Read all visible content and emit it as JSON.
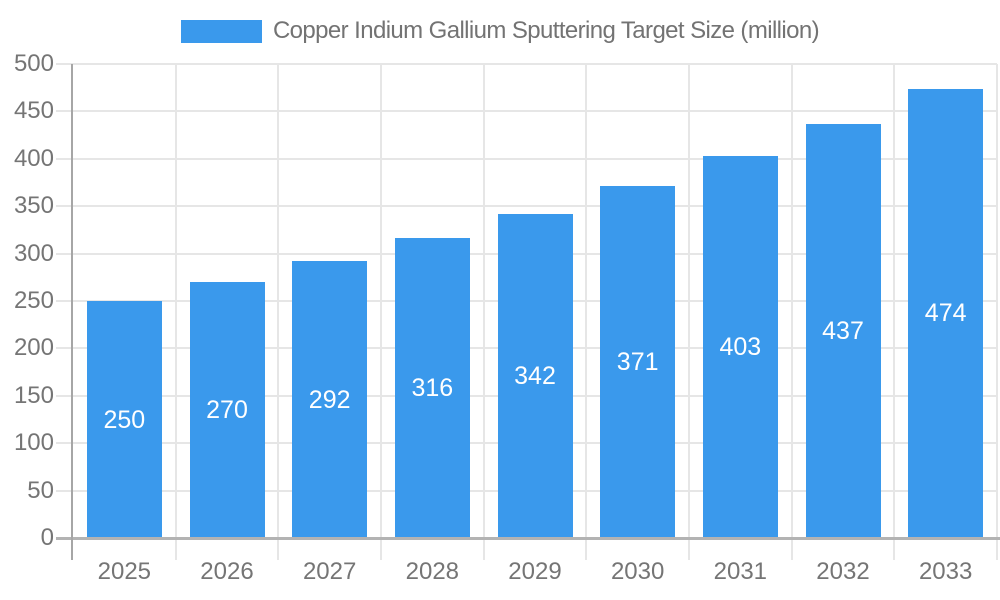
{
  "legend": {
    "series_label": "Copper Indium Gallium Sputtering Target Size (million)",
    "swatch_color": "#3A99EC"
  },
  "chart_data": {
    "type": "bar",
    "title": "Copper Indium Gallium Sputtering Target Size (million)",
    "series_name": "Copper Indium Gallium Sputtering Target Size (million)",
    "categories": [
      "2025",
      "2026",
      "2027",
      "2028",
      "2029",
      "2030",
      "2031",
      "2032",
      "2033"
    ],
    "values": [
      250,
      270,
      292,
      316,
      342,
      371,
      403,
      437,
      474
    ],
    "xlabel": "",
    "ylabel": "",
    "ylim": [
      0,
      500
    ],
    "ytick_interval": 50,
    "ytick_labels": [
      "0",
      "50",
      "100",
      "150",
      "200",
      "250",
      "300",
      "350",
      "400",
      "450",
      "500"
    ],
    "grid": true,
    "legend_position": "top-center",
    "value_label_position": "inside-center",
    "colors": {
      "bar": "#3A99EC",
      "value_label": "#FFFFFF",
      "grid_line": "#E6E6E6",
      "x_axis_line": "#B3B3B3",
      "y_axis_line": "#A6A6A6",
      "axis_text": "#757575",
      "legend_text": "#737373",
      "background": "#FFFFFF"
    }
  }
}
